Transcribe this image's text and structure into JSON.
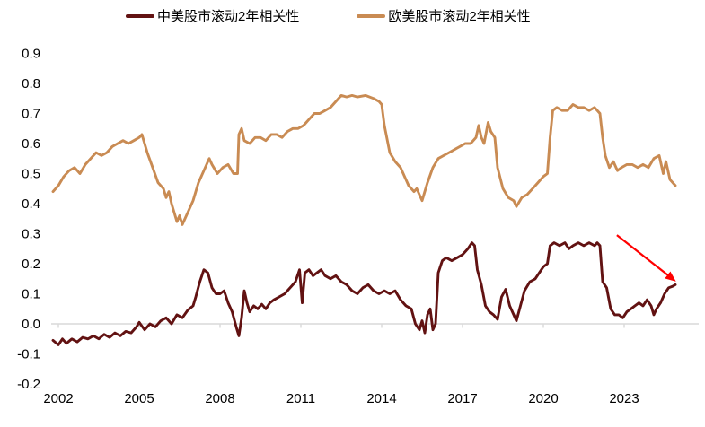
{
  "colors": {
    "background": "#FFFFFF",
    "axis_line": "#D9D9D9",
    "text": "#000000",
    "arrow": "#FF0000",
    "series_cn_us": "#621212",
    "series_eu_us": "#C98B53"
  },
  "chart_data": {
    "type": "line",
    "title": "",
    "xlabel": "",
    "ylabel": "",
    "legend_position": "top",
    "grid": "zero-axis-line-only",
    "ylim": [
      -0.2,
      0.9
    ],
    "xlim": [
      2001.75,
      2025.0
    ],
    "y_ticks": [
      "0.9",
      "0.8",
      "0.7",
      "0.6",
      "0.5",
      "0.4",
      "0.3",
      "0.2",
      "0.1",
      "0.0",
      "-0.1",
      "-0.2"
    ],
    "y_tick_values": [
      0.9,
      0.8,
      0.7,
      0.6,
      0.5,
      0.4,
      0.3,
      0.2,
      0.1,
      0.0,
      -0.1,
      -0.2
    ],
    "x_ticks": [
      "2002",
      "2005",
      "2008",
      "2011",
      "2014",
      "2017",
      "2020",
      "2023"
    ],
    "x_tick_years": [
      2002,
      2005,
      2008,
      2011,
      2014,
      2017,
      2020,
      2023
    ],
    "series": [
      {
        "name": "中美股市滚动2年相关性",
        "color": "#621212",
        "points": [
          [
            2001.8,
            -0.055
          ],
          [
            2002.0,
            -0.07
          ],
          [
            2002.15,
            -0.05
          ],
          [
            2002.3,
            -0.065
          ],
          [
            2002.5,
            -0.05
          ],
          [
            2002.7,
            -0.06
          ],
          [
            2002.9,
            -0.045
          ],
          [
            2003.1,
            -0.05
          ],
          [
            2003.3,
            -0.04
          ],
          [
            2003.5,
            -0.05
          ],
          [
            2003.7,
            -0.035
          ],
          [
            2003.9,
            -0.045
          ],
          [
            2004.1,
            -0.03
          ],
          [
            2004.3,
            -0.04
          ],
          [
            2004.5,
            -0.025
          ],
          [
            2004.7,
            -0.03
          ],
          [
            2004.9,
            -0.01
          ],
          [
            2005.0,
            0.005
          ],
          [
            2005.2,
            -0.02
          ],
          [
            2005.4,
            0.0
          ],
          [
            2005.6,
            -0.01
          ],
          [
            2005.8,
            0.01
          ],
          [
            2006.0,
            0.02
          ],
          [
            2006.2,
            0.0
          ],
          [
            2006.4,
            0.03
          ],
          [
            2006.6,
            0.02
          ],
          [
            2006.8,
            0.045
          ],
          [
            2007.0,
            0.06
          ],
          [
            2007.1,
            0.09
          ],
          [
            2007.25,
            0.14
          ],
          [
            2007.4,
            0.18
          ],
          [
            2007.55,
            0.17
          ],
          [
            2007.7,
            0.12
          ],
          [
            2007.85,
            0.1
          ],
          [
            2008.0,
            0.1
          ],
          [
            2008.15,
            0.11
          ],
          [
            2008.3,
            0.07
          ],
          [
            2008.45,
            0.04
          ],
          [
            2008.6,
            -0.01
          ],
          [
            2008.7,
            -0.04
          ],
          [
            2008.8,
            0.02
          ],
          [
            2008.9,
            0.11
          ],
          [
            2009.0,
            0.07
          ],
          [
            2009.1,
            0.04
          ],
          [
            2009.25,
            0.06
          ],
          [
            2009.4,
            0.05
          ],
          [
            2009.55,
            0.065
          ],
          [
            2009.7,
            0.05
          ],
          [
            2009.85,
            0.07
          ],
          [
            2010.0,
            0.08
          ],
          [
            2010.2,
            0.09
          ],
          [
            2010.4,
            0.1
          ],
          [
            2010.6,
            0.12
          ],
          [
            2010.8,
            0.14
          ],
          [
            2010.95,
            0.18
          ],
          [
            2011.05,
            0.07
          ],
          [
            2011.15,
            0.17
          ],
          [
            2011.3,
            0.18
          ],
          [
            2011.45,
            0.16
          ],
          [
            2011.6,
            0.17
          ],
          [
            2011.75,
            0.18
          ],
          [
            2011.9,
            0.16
          ],
          [
            2012.1,
            0.15
          ],
          [
            2012.3,
            0.16
          ],
          [
            2012.5,
            0.14
          ],
          [
            2012.7,
            0.13
          ],
          [
            2012.9,
            0.11
          ],
          [
            2013.1,
            0.1
          ],
          [
            2013.3,
            0.12
          ],
          [
            2013.5,
            0.13
          ],
          [
            2013.7,
            0.11
          ],
          [
            2013.9,
            0.1
          ],
          [
            2014.1,
            0.11
          ],
          [
            2014.3,
            0.1
          ],
          [
            2014.5,
            0.11
          ],
          [
            2014.7,
            0.08
          ],
          [
            2014.9,
            0.06
          ],
          [
            2015.1,
            0.05
          ],
          [
            2015.25,
            0.0
          ],
          [
            2015.4,
            -0.02
          ],
          [
            2015.5,
            0.01
          ],
          [
            2015.6,
            -0.03
          ],
          [
            2015.7,
            0.03
          ],
          [
            2015.8,
            0.05
          ],
          [
            2015.9,
            -0.02
          ],
          [
            2016.0,
            0.0
          ],
          [
            2016.1,
            0.17
          ],
          [
            2016.25,
            0.21
          ],
          [
            2016.4,
            0.22
          ],
          [
            2016.6,
            0.21
          ],
          [
            2016.8,
            0.22
          ],
          [
            2017.0,
            0.23
          ],
          [
            2017.2,
            0.25
          ],
          [
            2017.35,
            0.27
          ],
          [
            2017.45,
            0.26
          ],
          [
            2017.55,
            0.18
          ],
          [
            2017.7,
            0.13
          ],
          [
            2017.85,
            0.06
          ],
          [
            2018.0,
            0.04
          ],
          [
            2018.15,
            0.03
          ],
          [
            2018.3,
            0.015
          ],
          [
            2018.45,
            0.09
          ],
          [
            2018.6,
            0.115
          ],
          [
            2018.75,
            0.06
          ],
          [
            2018.9,
            0.03
          ],
          [
            2019.0,
            0.01
          ],
          [
            2019.15,
            0.06
          ],
          [
            2019.3,
            0.11
          ],
          [
            2019.5,
            0.14
          ],
          [
            2019.7,
            0.15
          ],
          [
            2019.85,
            0.17
          ],
          [
            2020.0,
            0.19
          ],
          [
            2020.15,
            0.2
          ],
          [
            2020.25,
            0.26
          ],
          [
            2020.4,
            0.27
          ],
          [
            2020.6,
            0.26
          ],
          [
            2020.8,
            0.27
          ],
          [
            2020.95,
            0.25
          ],
          [
            2021.1,
            0.26
          ],
          [
            2021.3,
            0.27
          ],
          [
            2021.5,
            0.26
          ],
          [
            2021.7,
            0.27
          ],
          [
            2021.9,
            0.26
          ],
          [
            2022.0,
            0.27
          ],
          [
            2022.1,
            0.26
          ],
          [
            2022.2,
            0.14
          ],
          [
            2022.35,
            0.12
          ],
          [
            2022.5,
            0.05
          ],
          [
            2022.65,
            0.03
          ],
          [
            2022.8,
            0.03
          ],
          [
            2022.95,
            0.02
          ],
          [
            2023.1,
            0.04
          ],
          [
            2023.25,
            0.05
          ],
          [
            2023.4,
            0.06
          ],
          [
            2023.55,
            0.07
          ],
          [
            2023.7,
            0.06
          ],
          [
            2023.85,
            0.08
          ],
          [
            2024.0,
            0.06
          ],
          [
            2024.1,
            0.03
          ],
          [
            2024.2,
            0.05
          ],
          [
            2024.35,
            0.07
          ],
          [
            2024.5,
            0.1
          ],
          [
            2024.65,
            0.12
          ],
          [
            2024.8,
            0.125
          ],
          [
            2024.9,
            0.13
          ]
        ]
      },
      {
        "name": "欧美股市滚动2年相关性",
        "color": "#C98B53",
        "points": [
          [
            2001.8,
            0.44
          ],
          [
            2002.0,
            0.46
          ],
          [
            2002.2,
            0.49
          ],
          [
            2002.4,
            0.51
          ],
          [
            2002.6,
            0.52
          ],
          [
            2002.8,
            0.5
          ],
          [
            2003.0,
            0.53
          ],
          [
            2003.2,
            0.55
          ],
          [
            2003.4,
            0.57
          ],
          [
            2003.6,
            0.56
          ],
          [
            2003.8,
            0.57
          ],
          [
            2004.0,
            0.59
          ],
          [
            2004.2,
            0.6
          ],
          [
            2004.4,
            0.61
          ],
          [
            2004.6,
            0.6
          ],
          [
            2004.8,
            0.61
          ],
          [
            2005.0,
            0.62
          ],
          [
            2005.1,
            0.63
          ],
          [
            2005.3,
            0.57
          ],
          [
            2005.5,
            0.52
          ],
          [
            2005.7,
            0.47
          ],
          [
            2005.9,
            0.45
          ],
          [
            2006.0,
            0.42
          ],
          [
            2006.1,
            0.44
          ],
          [
            2006.2,
            0.4
          ],
          [
            2006.4,
            0.34
          ],
          [
            2006.5,
            0.36
          ],
          [
            2006.6,
            0.33
          ],
          [
            2006.8,
            0.37
          ],
          [
            2007.0,
            0.41
          ],
          [
            2007.2,
            0.47
          ],
          [
            2007.4,
            0.51
          ],
          [
            2007.6,
            0.55
          ],
          [
            2007.7,
            0.53
          ],
          [
            2007.9,
            0.5
          ],
          [
            2008.1,
            0.52
          ],
          [
            2008.3,
            0.53
          ],
          [
            2008.5,
            0.5
          ],
          [
            2008.65,
            0.5
          ],
          [
            2008.7,
            0.63
          ],
          [
            2008.8,
            0.65
          ],
          [
            2008.9,
            0.61
          ],
          [
            2009.1,
            0.6
          ],
          [
            2009.3,
            0.62
          ],
          [
            2009.5,
            0.62
          ],
          [
            2009.7,
            0.61
          ],
          [
            2009.9,
            0.63
          ],
          [
            2010.1,
            0.63
          ],
          [
            2010.3,
            0.62
          ],
          [
            2010.5,
            0.64
          ],
          [
            2010.7,
            0.65
          ],
          [
            2010.9,
            0.65
          ],
          [
            2011.1,
            0.66
          ],
          [
            2011.3,
            0.68
          ],
          [
            2011.5,
            0.7
          ],
          [
            2011.7,
            0.7
          ],
          [
            2011.9,
            0.71
          ],
          [
            2012.1,
            0.72
          ],
          [
            2012.3,
            0.74
          ],
          [
            2012.5,
            0.76
          ],
          [
            2012.7,
            0.755
          ],
          [
            2012.9,
            0.76
          ],
          [
            2013.1,
            0.755
          ],
          [
            2013.4,
            0.76
          ],
          [
            2013.7,
            0.75
          ],
          [
            2013.9,
            0.74
          ],
          [
            2014.0,
            0.73
          ],
          [
            2014.1,
            0.66
          ],
          [
            2014.3,
            0.57
          ],
          [
            2014.5,
            0.54
          ],
          [
            2014.7,
            0.52
          ],
          [
            2014.9,
            0.48
          ],
          [
            2015.0,
            0.46
          ],
          [
            2015.2,
            0.44
          ],
          [
            2015.3,
            0.45
          ],
          [
            2015.5,
            0.41
          ],
          [
            2015.6,
            0.44
          ],
          [
            2015.7,
            0.47
          ],
          [
            2015.9,
            0.52
          ],
          [
            2016.1,
            0.55
          ],
          [
            2016.3,
            0.56
          ],
          [
            2016.5,
            0.57
          ],
          [
            2016.7,
            0.58
          ],
          [
            2016.9,
            0.59
          ],
          [
            2017.1,
            0.6
          ],
          [
            2017.3,
            0.6
          ],
          [
            2017.5,
            0.62
          ],
          [
            2017.6,
            0.66
          ],
          [
            2017.7,
            0.62
          ],
          [
            2017.8,
            0.6
          ],
          [
            2017.95,
            0.67
          ],
          [
            2018.05,
            0.64
          ],
          [
            2018.2,
            0.62
          ],
          [
            2018.3,
            0.52
          ],
          [
            2018.5,
            0.45
          ],
          [
            2018.7,
            0.42
          ],
          [
            2018.9,
            0.41
          ],
          [
            2019.0,
            0.39
          ],
          [
            2019.2,
            0.42
          ],
          [
            2019.4,
            0.43
          ],
          [
            2019.6,
            0.45
          ],
          [
            2019.8,
            0.47
          ],
          [
            2020.0,
            0.49
          ],
          [
            2020.15,
            0.5
          ],
          [
            2020.25,
            0.62
          ],
          [
            2020.35,
            0.71
          ],
          [
            2020.5,
            0.72
          ],
          [
            2020.7,
            0.71
          ],
          [
            2020.9,
            0.71
          ],
          [
            2021.1,
            0.73
          ],
          [
            2021.3,
            0.72
          ],
          [
            2021.5,
            0.72
          ],
          [
            2021.7,
            0.71
          ],
          [
            2021.9,
            0.72
          ],
          [
            2022.1,
            0.7
          ],
          [
            2022.2,
            0.62
          ],
          [
            2022.3,
            0.56
          ],
          [
            2022.45,
            0.52
          ],
          [
            2022.6,
            0.54
          ],
          [
            2022.75,
            0.51
          ],
          [
            2022.9,
            0.52
          ],
          [
            2023.1,
            0.53
          ],
          [
            2023.3,
            0.53
          ],
          [
            2023.5,
            0.52
          ],
          [
            2023.7,
            0.53
          ],
          [
            2023.9,
            0.52
          ],
          [
            2024.1,
            0.55
          ],
          [
            2024.3,
            0.56
          ],
          [
            2024.45,
            0.5
          ],
          [
            2024.55,
            0.54
          ],
          [
            2024.7,
            0.48
          ],
          [
            2024.8,
            0.47
          ],
          [
            2024.9,
            0.46
          ]
        ]
      }
    ],
    "annotation_arrow": {
      "color": "#FF0000",
      "from": {
        "year": 2022.73,
        "value": 0.295
      },
      "to": {
        "year": 2024.82,
        "value": 0.148
      }
    }
  }
}
